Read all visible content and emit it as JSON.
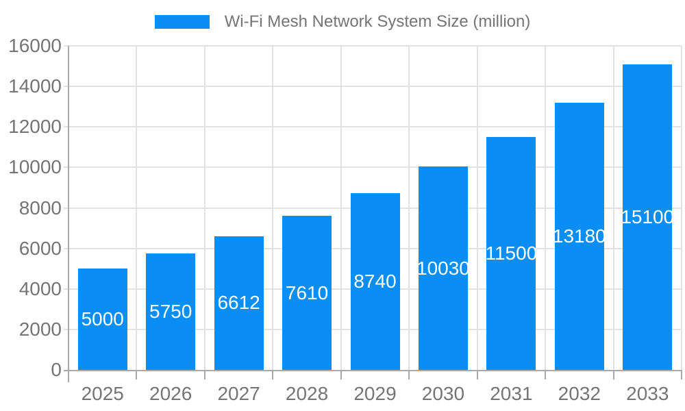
{
  "chart_data": {
    "type": "bar",
    "title": "Wi-Fi Mesh Network System Size (million)",
    "legend_position": "top",
    "categories": [
      "2025",
      "2026",
      "2027",
      "2028",
      "2029",
      "2030",
      "2031",
      "2032",
      "2033"
    ],
    "series": [
      {
        "name": "Wi-Fi Mesh Network System Size (million)",
        "values": [
          5000,
          5750,
          6612,
          7610,
          8740,
          10030,
          11500,
          13180,
          15100
        ]
      }
    ],
    "value_labels": [
      "5000",
      "5750",
      "6612",
      "7610",
      "8740",
      "10030",
      "11500",
      "13180",
      "15100"
    ],
    "xlabel": "",
    "ylabel": "",
    "ylim": [
      0,
      16000
    ],
    "ytick_step": 2000,
    "ytick_labels": [
      "0",
      "2000",
      "4000",
      "6000",
      "8000",
      "10000",
      "12000",
      "14000",
      "16000"
    ],
    "grid": true,
    "colors": {
      "bar": "#0A8EF4",
      "grid": "#E2E2E2",
      "axis": "#A9A9A9",
      "tick_label": "#757575",
      "legend_label": "#757575",
      "value_label": "#FFFFFF",
      "background": "#FFFFFF"
    }
  }
}
